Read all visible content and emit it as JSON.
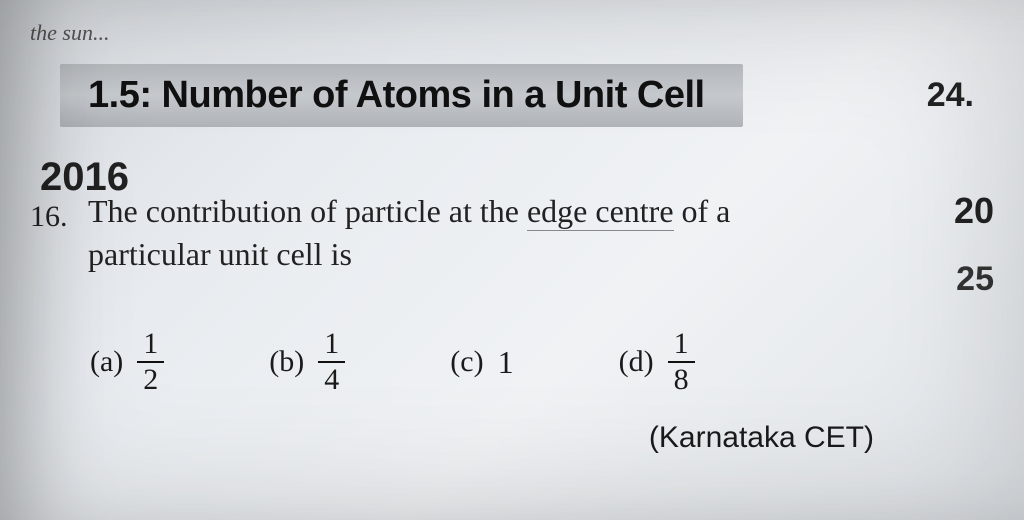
{
  "page": {
    "top_fragment": "the sun...",
    "section_banner": "1.5: Number of Atoms in a Unit Cell",
    "right_margin_24": "24.",
    "year": "2016",
    "right_margin_20": "20",
    "right_margin_25": "25",
    "source": "(Karnataka CET)"
  },
  "question": {
    "number": "16.",
    "line1_pre": "The contribution of particle at the ",
    "line1_underlined": "edge centre",
    "line1_post": " of a",
    "line2": "particular unit cell is",
    "options": {
      "a": {
        "label": "(a)",
        "numer": "1",
        "denom": "2"
      },
      "b": {
        "label": "(b)",
        "numer": "1",
        "denom": "4"
      },
      "c": {
        "label": "(c)",
        "value": "1"
      },
      "d": {
        "label": "(d)",
        "numer": "1",
        "denom": "8"
      }
    }
  },
  "style": {
    "banner_bg_top": "#b8bcc0",
    "banner_bg_mid": "#c8ccd0",
    "banner_bg_bot": "#b0b4b8",
    "text_color": "#1a1a1a",
    "underline_color": "#888888",
    "fraction_bar_color": "#111111",
    "body_bg_from": "#d8dce0",
    "body_bg_to": "#e0e4e8",
    "banner_fontsize": 38,
    "year_fontsize": 40,
    "question_fontsize": 32,
    "option_fontsize": 30,
    "source_fontsize": 30
  }
}
